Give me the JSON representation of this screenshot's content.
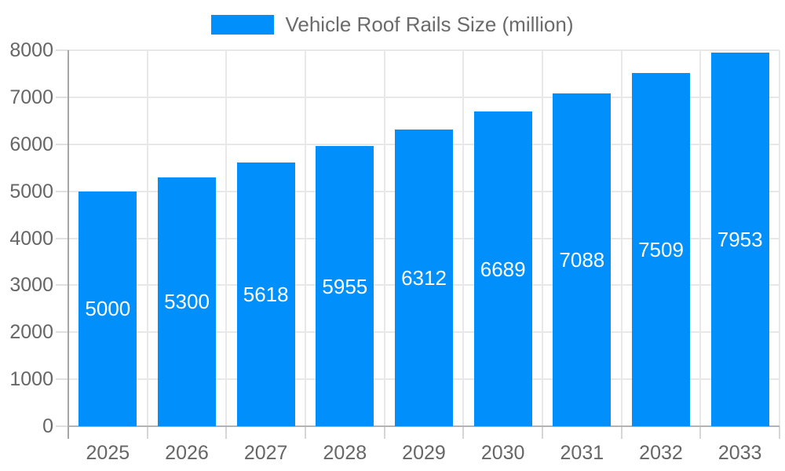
{
  "chart_data": {
    "type": "bar",
    "title": "Vehicle Roof Rails Size (million)",
    "categories": [
      "2025",
      "2026",
      "2027",
      "2028",
      "2029",
      "2030",
      "2031",
      "2032",
      "2033"
    ],
    "series": [
      {
        "name": "Vehicle Roof Rails Size (million)",
        "values": [
          5000,
          5300,
          5618,
          5955,
          6312,
          6689,
          7088,
          7509,
          7953
        ]
      }
    ],
    "xlabel": "",
    "ylabel": "",
    "ylim": [
      0,
      8000
    ],
    "y_ticks": [
      0,
      1000,
      2000,
      3000,
      4000,
      5000,
      6000,
      7000,
      8000
    ],
    "grid": true,
    "legend_position": "top",
    "colors": {
      "bar": "#008FFB",
      "value_label": "#ffffff",
      "axis_text": "#666666",
      "legend_text": "#6b6b6b",
      "gridline": "#e8e8e8",
      "y_axis_line": "#a6a6a6",
      "x_axis_line": "#b3b3b3",
      "background": "#ffffff"
    }
  }
}
